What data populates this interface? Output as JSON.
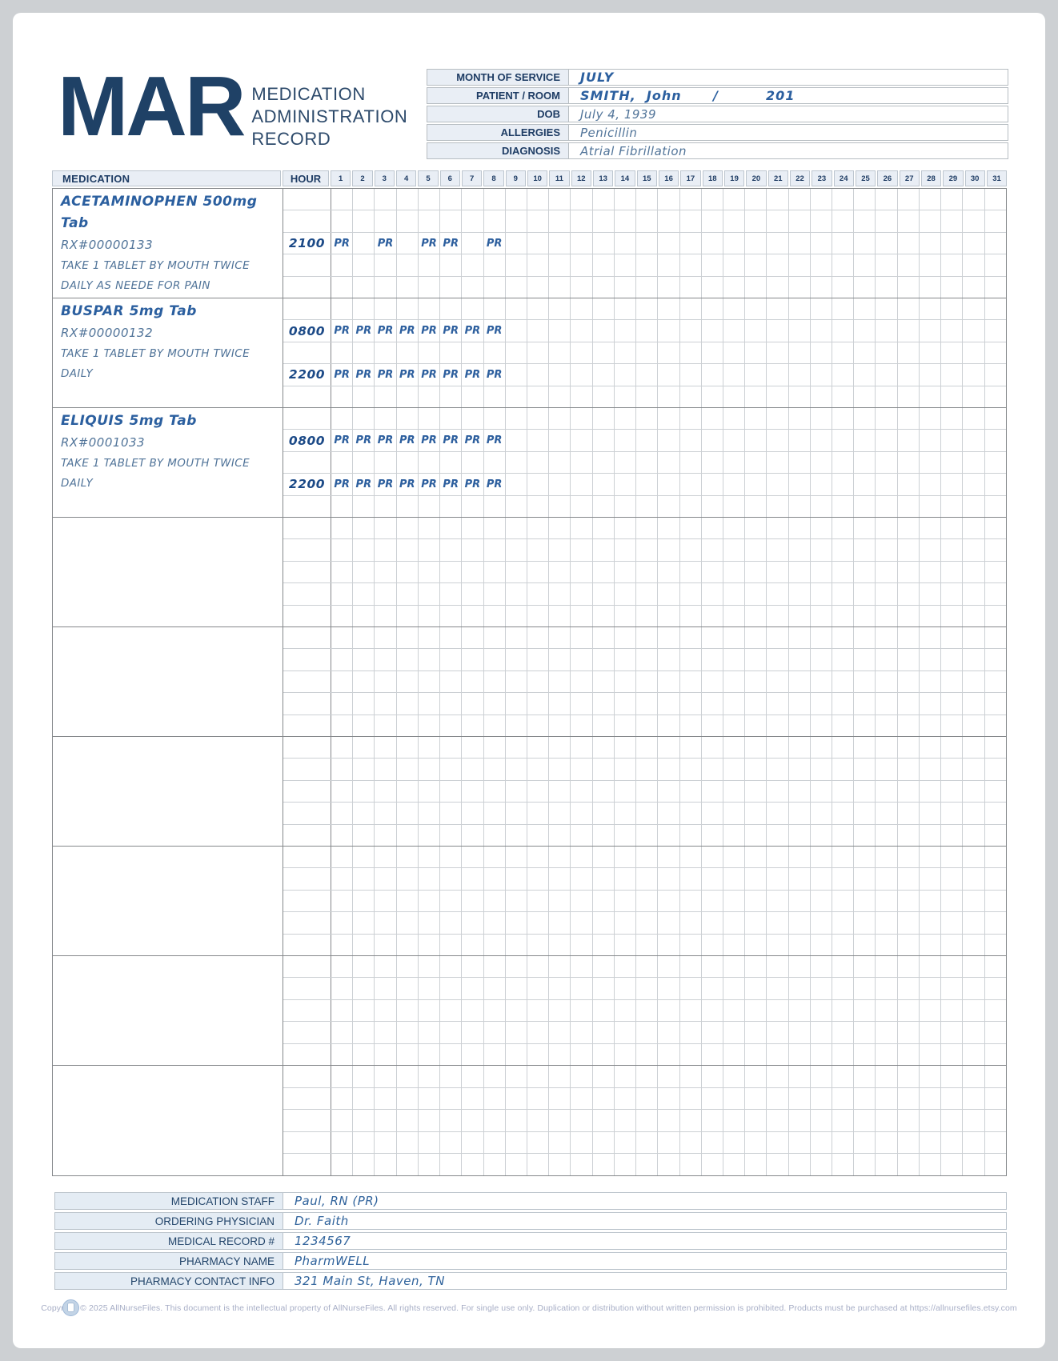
{
  "logo": {
    "acronym": "MAR",
    "lines": [
      "MEDICATION",
      "ADMINISTRATION",
      "RECORD"
    ]
  },
  "patient_info": {
    "rows": [
      {
        "label": "MONTH OF SERVICE",
        "value": "JULY",
        "style": "marker"
      },
      {
        "label": "PATIENT / ROOM",
        "value": "SMITH,  John      /         201",
        "style": "marker"
      },
      {
        "label": "DOB",
        "value": "July 4, 1939",
        "style": "script"
      },
      {
        "label": "ALLERGIES",
        "value": "Penicillin",
        "style": "script"
      },
      {
        "label": "DIAGNOSIS",
        "value": "Atrial Fibrillation",
        "style": "script"
      }
    ]
  },
  "mar_table": {
    "medication_header": "MEDICATION",
    "hour_header": "HOUR",
    "days": [
      "1",
      "2",
      "3",
      "4",
      "5",
      "6",
      "7",
      "8",
      "9",
      "10",
      "11",
      "12",
      "13",
      "14",
      "15",
      "16",
      "17",
      "18",
      "19",
      "20",
      "21",
      "22",
      "23",
      "24",
      "25",
      "26",
      "27",
      "28",
      "29",
      "30",
      "31"
    ],
    "rows_per_block": 5,
    "blocks": [
      {
        "name": "ACETAMINOPHEN 500mg Tab",
        "rx": "RX#00000133",
        "directions": "TAKE 1 TABLET BY MOUTH TWICE DAILY AS NEEDE FOR PAIN",
        "hours": [
          {
            "row": 2,
            "time": "2100",
            "marks": {
              "1": "PR",
              "3": "PR",
              "5": "PR",
              "6": "PR",
              "8": "PR"
            }
          }
        ]
      },
      {
        "name": "BUSPAR 5mg Tab",
        "rx": "RX#00000132",
        "directions": "TAKE 1 TABLET BY MOUTH TWICE DAILY",
        "hours": [
          {
            "row": 1,
            "time": "0800",
            "marks": {
              "1": "PR",
              "2": "PR",
              "3": "PR",
              "4": "PR",
              "5": "PR",
              "6": "PR",
              "7": "PR",
              "8": "PR"
            }
          },
          {
            "row": 3,
            "time": "2200",
            "marks": {
              "1": "PR",
              "2": "PR",
              "3": "PR",
              "4": "PR",
              "5": "PR",
              "6": "PR",
              "7": "PR",
              "8": "PR"
            }
          }
        ]
      },
      {
        "name": "ELIQUIS 5mg Tab",
        "rx": "RX#0001033",
        "directions": "TAKE 1 TABLET BY MOUTH TWICE DAILY",
        "hours": [
          {
            "row": 1,
            "time": "0800",
            "marks": {
              "1": "PR",
              "2": "PR",
              "3": "PR",
              "4": "PR",
              "5": "PR",
              "6": "PR",
              "7": "PR",
              "8": "PR"
            }
          },
          {
            "row": 3,
            "time": "2200",
            "marks": {
              "1": "PR",
              "2": "PR",
              "3": "PR",
              "4": "PR",
              "5": "PR",
              "6": "PR",
              "7": "PR",
              "8": "PR"
            }
          }
        ]
      },
      {},
      {},
      {},
      {},
      {},
      {}
    ]
  },
  "footer_info": {
    "rows": [
      {
        "label": "MEDICATION STAFF",
        "value": "Paul, RN (PR)"
      },
      {
        "label": "ORDERING PHYSICIAN",
        "value": "Dr. Faith"
      },
      {
        "label": "MEDICAL RECORD #",
        "value": "1234567"
      },
      {
        "label": "PHARMACY NAME",
        "value": "PharmWELL"
      },
      {
        "label": "PHARMACY CONTACT INFO",
        "value": "321 Main St, Haven, TN"
      }
    ]
  },
  "copyright": {
    "icon": "document-badge-icon",
    "text": "Copyright © 2025 AllNurseFiles. This document is the intellectual property of AllNurseFiles. All rights reserved. For single use only. Duplication or distribution without written permission is prohibited. Products must be purchased at https://allnursefiles.etsy.com"
  },
  "colors": {
    "navy": "#1e3c64",
    "logo_navy": "#1f4166",
    "marker_blue": "#2b5f9f",
    "script_blue": "#517499",
    "hour_blue": "#1c4a87",
    "header_cell_bg": "#e9eef5",
    "grid_light": "#ccd0d4",
    "grid_dark": "#85888b",
    "footer_text": "#a7aec6"
  }
}
